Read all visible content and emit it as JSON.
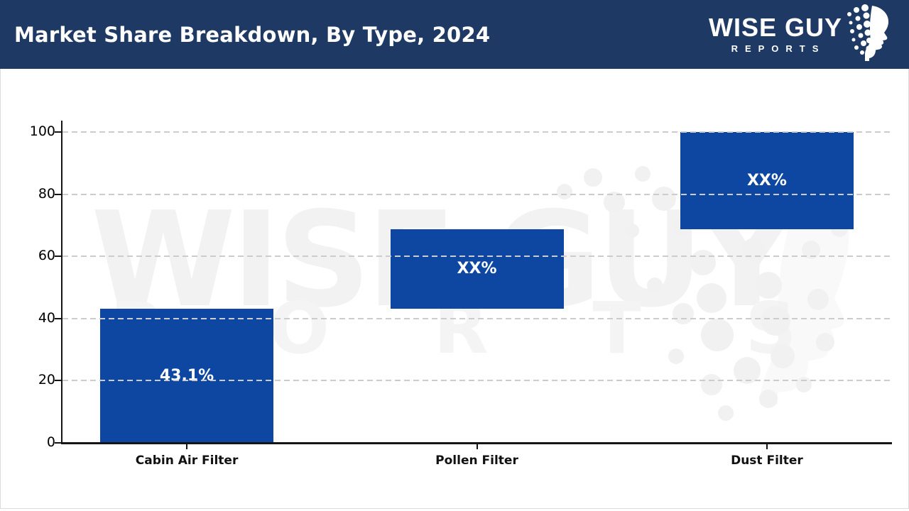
{
  "header": {
    "title": "Market Share Breakdown, By Type, 2024",
    "logo": {
      "line1": "WISE GUY",
      "line2": "REPORTS"
    }
  },
  "watermark": {
    "line1": "WISE GUY",
    "line2": "R O R T S"
  },
  "colors": {
    "header_bg": "#1e3a64",
    "bar": "#0d47a1",
    "grid": "#cccccc",
    "bar_label": "#ffffff",
    "watermark": "#f2f2f2"
  },
  "chart_data": {
    "type": "bar",
    "subtype": "waterfall",
    "title": "Market Share Breakdown, By Type, 2024",
    "categories": [
      "Cabin Air Filter",
      "Pollen Filter",
      "Dust Filter"
    ],
    "bars": [
      {
        "category": "Cabin Air Filter",
        "start": 0,
        "end": 43.1,
        "label": "43.1%"
      },
      {
        "category": "Pollen Filter",
        "start": 43.1,
        "end": 68.8,
        "label": "XX%"
      },
      {
        "category": "Dust Filter",
        "start": 68.8,
        "end": 100,
        "label": "XX%"
      }
    ],
    "ylim": [
      0,
      100
    ],
    "yticks": [
      0,
      20,
      40,
      60,
      80,
      100
    ],
    "xlabel": "",
    "ylabel": "",
    "grid": "horizontal-dashed",
    "legend": null,
    "bar_color": "#0d47a1"
  }
}
